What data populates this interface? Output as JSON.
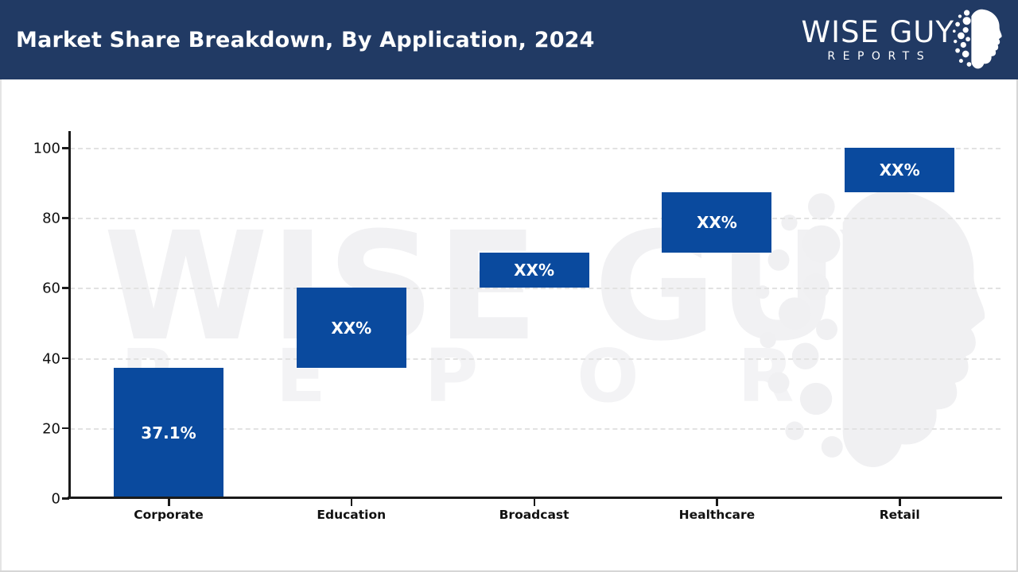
{
  "header": {
    "title": "Market Share Breakdown, By Application, 2024",
    "bg_color": "#213a64",
    "logo": {
      "line1": "WISE GUY",
      "line2": "REPORTS"
    }
  },
  "watermark": {
    "line1": "WISE GUY",
    "line2": "R E P O R T S"
  },
  "chart_data": {
    "type": "bar",
    "subtype": "floating-waterfall",
    "title": "Market Share Breakdown, By Application, 2024",
    "categories": [
      "Corporate",
      "Education",
      "Broadcast",
      "Healthcare",
      "Retail"
    ],
    "segments": [
      {
        "category": "Corporate",
        "start": 0,
        "end": 37.1,
        "label": "37.1%"
      },
      {
        "category": "Education",
        "start": 37.1,
        "end": 60,
        "label": "XX%"
      },
      {
        "category": "Broadcast",
        "start": 60,
        "end": 70,
        "label": "XX%"
      },
      {
        "category": "Healthcare",
        "start": 70,
        "end": 87.3,
        "label": "XX%"
      },
      {
        "category": "Retail",
        "start": 87.3,
        "end": 100,
        "label": "XX%"
      }
    ],
    "xlabel": "",
    "ylabel": "",
    "ylim": [
      0,
      100
    ],
    "yticks": [
      0,
      20,
      40,
      60,
      80,
      100
    ],
    "grid": "horizontal-dashed",
    "legend": "none",
    "bar_color": "#0a4a9e",
    "bar_label_color": "#ffffff"
  }
}
